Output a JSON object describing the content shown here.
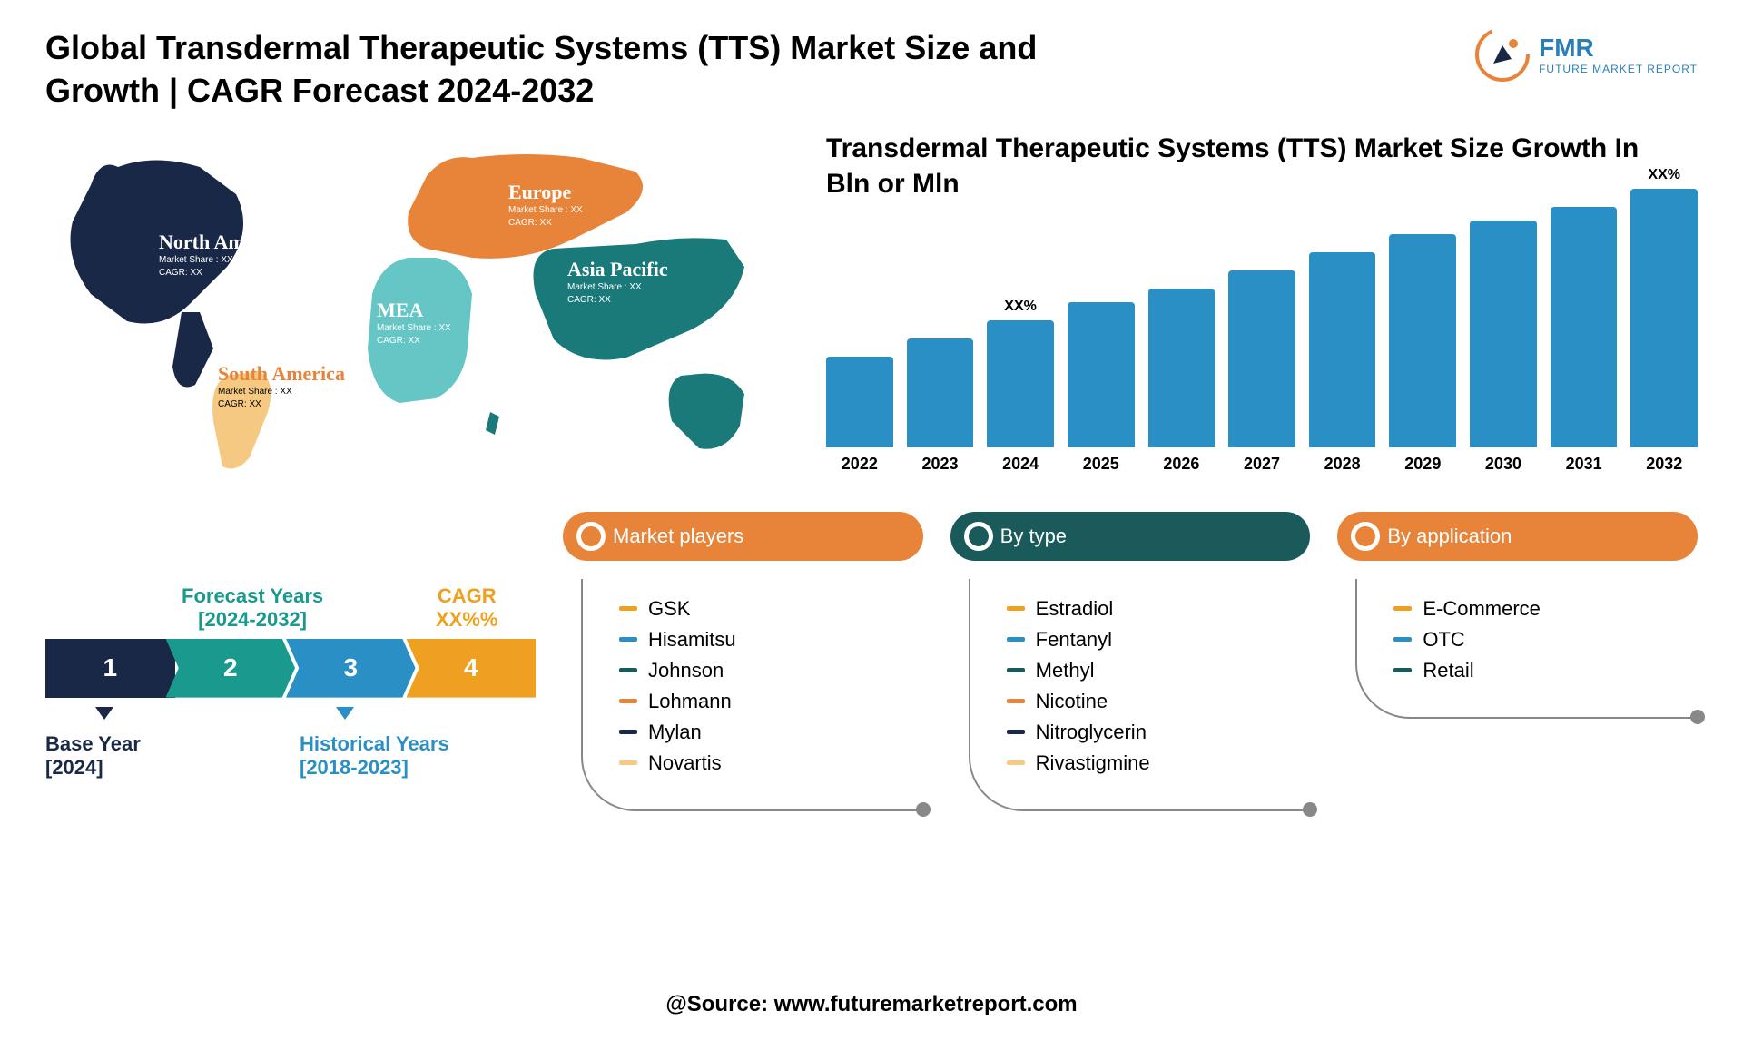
{
  "title": "Global Transdermal Therapeutic Systems (TTS) Market Size and Growth | CAGR Forecast 2024-2032",
  "logo": {
    "brand": "FMR",
    "tagline": "FUTURE MARKET REPORT"
  },
  "map": {
    "regions": [
      {
        "name": "North America",
        "share": "Market Share : XX",
        "cagr": "CAGR: XX",
        "color": "#1a2847"
      },
      {
        "name": "South America",
        "share": "Market Share : XX",
        "cagr": "CAGR: XX",
        "color": "#f5c982"
      },
      {
        "name": "Europe",
        "share": "Market Share : XX",
        "cagr": "CAGR: XX",
        "color": "#e8833a"
      },
      {
        "name": "MEA",
        "share": "Market Share : XX",
        "cagr": "CAGR: XX",
        "color": "#66c5c5"
      },
      {
        "name": "Asia Pacific",
        "share": "Market Share : XX",
        "cagr": "CAGR: XX",
        "color": "#1a7a7a"
      }
    ]
  },
  "chart": {
    "title": "Transdermal Therapeutic Systems (TTS) Market Size Growth In\nBln or Mln",
    "years": [
      "2022",
      "2023",
      "2024",
      "2025",
      "2026",
      "2027",
      "2028",
      "2029",
      "2030",
      "2031",
      "2032"
    ],
    "heights": [
      100,
      120,
      140,
      160,
      175,
      195,
      215,
      235,
      250,
      265,
      285
    ],
    "bar_color": "#2a8fc4",
    "label_2024": "XX%",
    "label_2032": "XX%"
  },
  "timeline": {
    "forecast_label": "Forecast Years",
    "forecast_range": "[2024-2032]",
    "cagr_label": "CAGR",
    "cagr_value": "XX%%",
    "base_label": "Base Year",
    "base_range": "[2024]",
    "hist_label": "Historical Years",
    "hist_range": "[2018-2023]",
    "segments": [
      "1",
      "2",
      "3",
      "4"
    ],
    "colors": {
      "s1": "#1a2847",
      "s2": "#1a9a8e",
      "s3": "#2a8fc4",
      "s4": "#f0a020"
    }
  },
  "pills": [
    {
      "title": "Market players",
      "color": "orange",
      "items": [
        {
          "label": "GSK",
          "dash": "#f0a020"
        },
        {
          "label": "Hisamitsu",
          "dash": "#2a8fc4"
        },
        {
          "label": "Johnson",
          "dash": "#1a5a5a"
        },
        {
          "label": "Lohmann",
          "dash": "#e8833a"
        },
        {
          "label": "Mylan",
          "dash": "#1a2847"
        },
        {
          "label": "Novartis",
          "dash": "#f5c982"
        }
      ]
    },
    {
      "title": "By type",
      "color": "teal",
      "items": [
        {
          "label": "Estradiol",
          "dash": "#f0a020"
        },
        {
          "label": "Fentanyl",
          "dash": "#2a8fc4"
        },
        {
          "label": "Methyl",
          "dash": "#1a5a5a"
        },
        {
          "label": "Nicotine",
          "dash": "#e8833a"
        },
        {
          "label": "Nitroglycerin",
          "dash": "#1a2847"
        },
        {
          "label": "Rivastigmine",
          "dash": "#f5c982"
        }
      ]
    },
    {
      "title": "By application",
      "color": "orange",
      "items": [
        {
          "label": "E-Commerce",
          "dash": "#f0a020"
        },
        {
          "label": "OTC",
          "dash": "#2a8fc4"
        },
        {
          "label": "Retail",
          "dash": "#1a5a5a"
        }
      ]
    }
  ],
  "source": "@Source: www.futuremarketreport.com"
}
